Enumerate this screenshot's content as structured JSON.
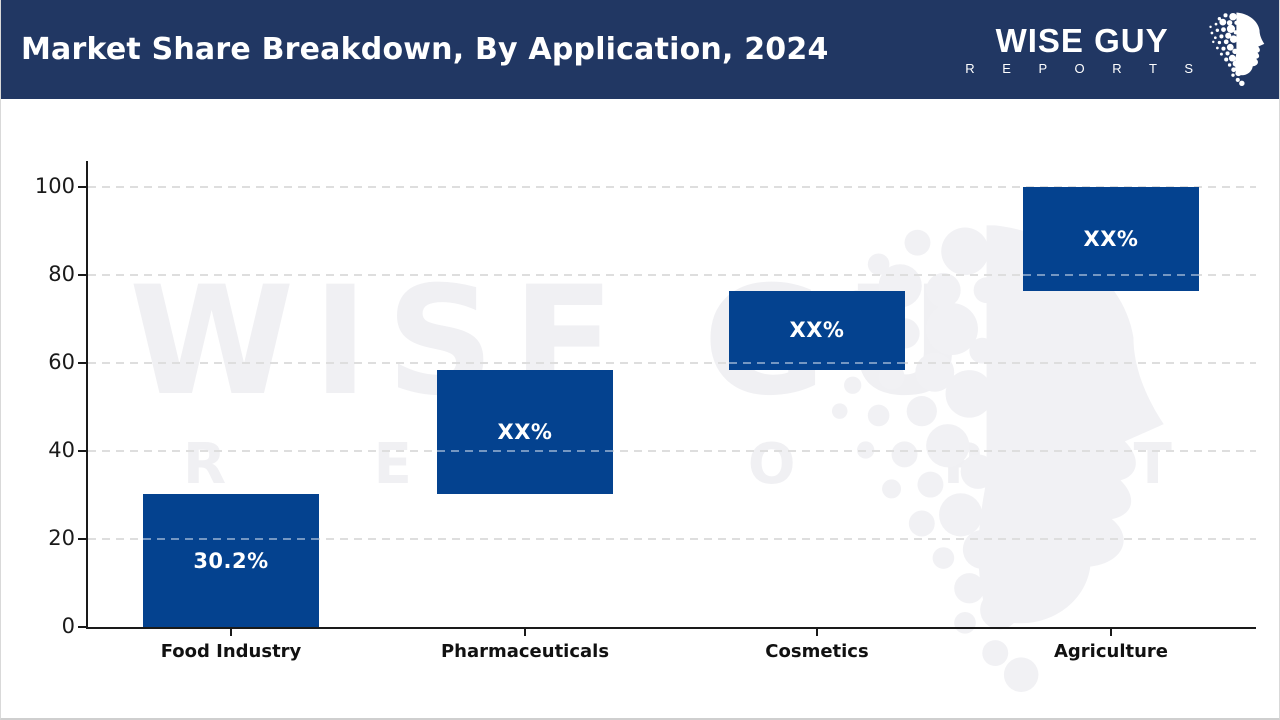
{
  "header": {
    "title": "Market Share Breakdown, By Application, 2024",
    "logo": {
      "line1": "WISE GUY",
      "line2": "R E P O R T S"
    }
  },
  "watermark": {
    "line1": "WISE GUY",
    "line2": "R E P O R T S"
  },
  "chart_data": {
    "type": "bar",
    "subtype": "waterfall",
    "title": "Market Share Breakdown, By Application, 2024",
    "categories": [
      "Food Industry",
      "Pharmaceuticals",
      "Cosmetics",
      "Agriculture"
    ],
    "series": [
      {
        "name": "Market Share (%)",
        "segments": [
          {
            "category": "Food Industry",
            "start": 0,
            "end": 30.2,
            "label": "30.2%"
          },
          {
            "category": "Pharmaceuticals",
            "start": 30.2,
            "end": 58.4,
            "label": "XX%"
          },
          {
            "category": "Cosmetics",
            "start": 58.4,
            "end": 76.4,
            "label": "XX%"
          },
          {
            "category": "Agriculture",
            "start": 76.4,
            "end": 100,
            "label": "XX%"
          }
        ]
      }
    ],
    "ylim": [
      0,
      100
    ],
    "yticks": [
      0,
      20,
      40,
      60,
      80,
      100
    ],
    "grid": {
      "horizontal": true,
      "style": "dashed"
    },
    "legend": "none",
    "colors": {
      "bar": "#04428F",
      "bar_label": "#FFFFFF",
      "gridline": "#DEDEDE",
      "axis": "#1A1A1A",
      "tick_label": "#1A1A1A",
      "header_bg": "#213763",
      "header_text": "#FFFFFF",
      "watermark": "#F0F0F3",
      "background": "#FFFFFF"
    }
  }
}
